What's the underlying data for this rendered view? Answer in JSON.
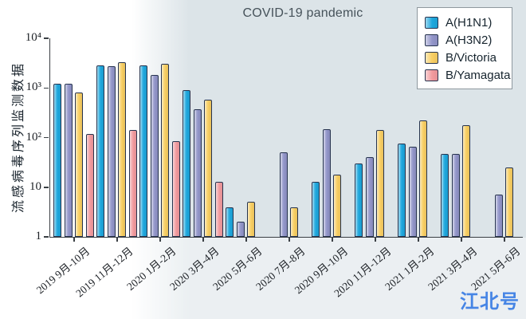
{
  "title": "COVID-19 pandemic",
  "watermark": "江北号",
  "colors": {
    "background_left": "#ffffff",
    "background_shaded": "#dce4e8",
    "axis": "#3a3f44",
    "title_text": "#46525a",
    "watermark_text": "#4685e5",
    "bar_outline": "#27344f"
  },
  "chart_data": {
    "type": "bar",
    "title": "COVID-19 pandemic",
    "ylabel": "流感病毒序列监测数据",
    "xlabel": "",
    "yscale": "log10",
    "ylim": [
      1,
      10000
    ],
    "y_ticks": [
      "1",
      "10",
      "10²",
      "10³",
      "10⁴"
    ],
    "grid": false,
    "legend_position": "top-right",
    "shading_note": "right portion shaded to mark COVID-19 pandemic period",
    "categories": [
      "2019 9月-10月",
      "2019 11月-12月",
      "2020 1月-2月",
      "2020 3月-4月",
      "2020 5月-6月",
      "2020 7月-8月",
      "2020 9月-10月",
      "2020 11月-12月",
      "2021 1月-2月",
      "2021 3月-4月",
      "2021 5月-6月"
    ],
    "series": [
      {
        "name": "A(H1N1)",
        "color": "#1ea7dd",
        "values": [
          1200,
          2800,
          2800,
          900,
          4,
          0,
          13,
          30,
          75,
          46,
          0
        ]
      },
      {
        "name": "A(H3N2)",
        "color": "#9295c9",
        "values": [
          1200,
          2700,
          1800,
          370,
          2,
          50,
          150,
          40,
          65,
          46,
          7
        ]
      },
      {
        "name": "B/Victoria",
        "color": "#f8ce63",
        "values": [
          800,
          3300,
          3100,
          590,
          5,
          4,
          18,
          140,
          220,
          180,
          25
        ]
      },
      {
        "name": "B/Yamagata",
        "color": "#f29a9e",
        "values": [
          120,
          140,
          85,
          13,
          0,
          0,
          0,
          0,
          0,
          0,
          0
        ]
      }
    ]
  }
}
